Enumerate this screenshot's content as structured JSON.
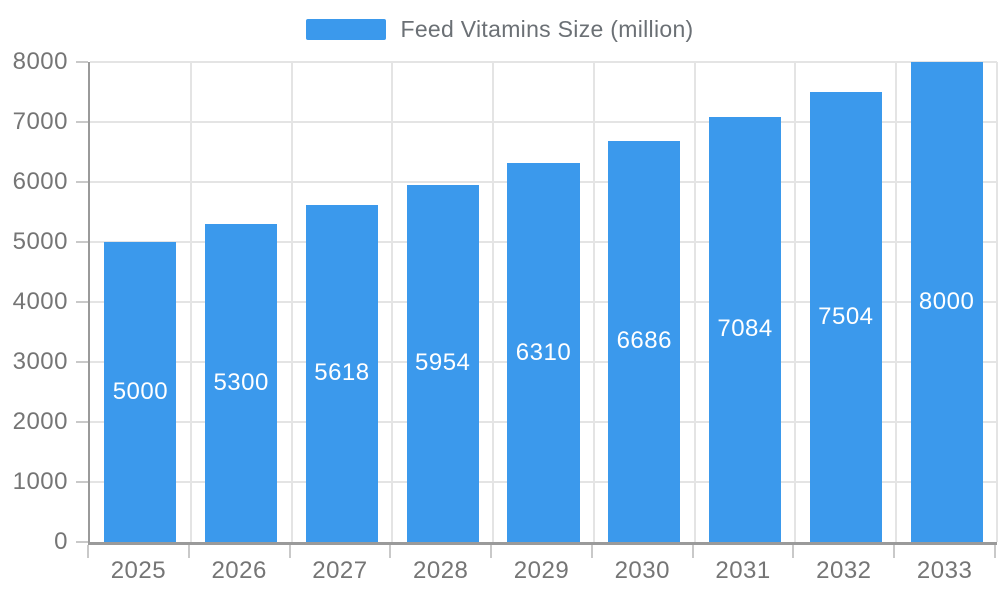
{
  "legend": {
    "label": "Feed Vitamins Size (million)"
  },
  "colors": {
    "bar_color": "#3b99ec",
    "axis_color": "#9a9a9a",
    "grid_color": "#e4e4e4",
    "tick_color": "#c9c9c9",
    "axis_label_text": "#757575",
    "legend_text": "#6b7075",
    "bar_label_text": "#ffffff",
    "background": "#ffffff"
  },
  "chart_data": {
    "type": "bar",
    "title": "Feed Vitamins Size (million)",
    "series_name": "Feed Vitamins Size (million)",
    "categories": [
      "2025",
      "2026",
      "2027",
      "2028",
      "2029",
      "2030",
      "2031",
      "2032",
      "2033"
    ],
    "values": [
      5000,
      5300,
      5618,
      5954,
      6310,
      6686,
      7084,
      7504,
      8000
    ],
    "xlabel": "",
    "ylabel": "",
    "ylim": [
      0,
      8000
    ],
    "ytick_interval": 1000,
    "yticks": [
      0,
      1000,
      2000,
      3000,
      4000,
      5000,
      6000,
      7000,
      8000
    ],
    "grid": true,
    "bar_labels": "inside-center",
    "legend_position": "top-center"
  }
}
